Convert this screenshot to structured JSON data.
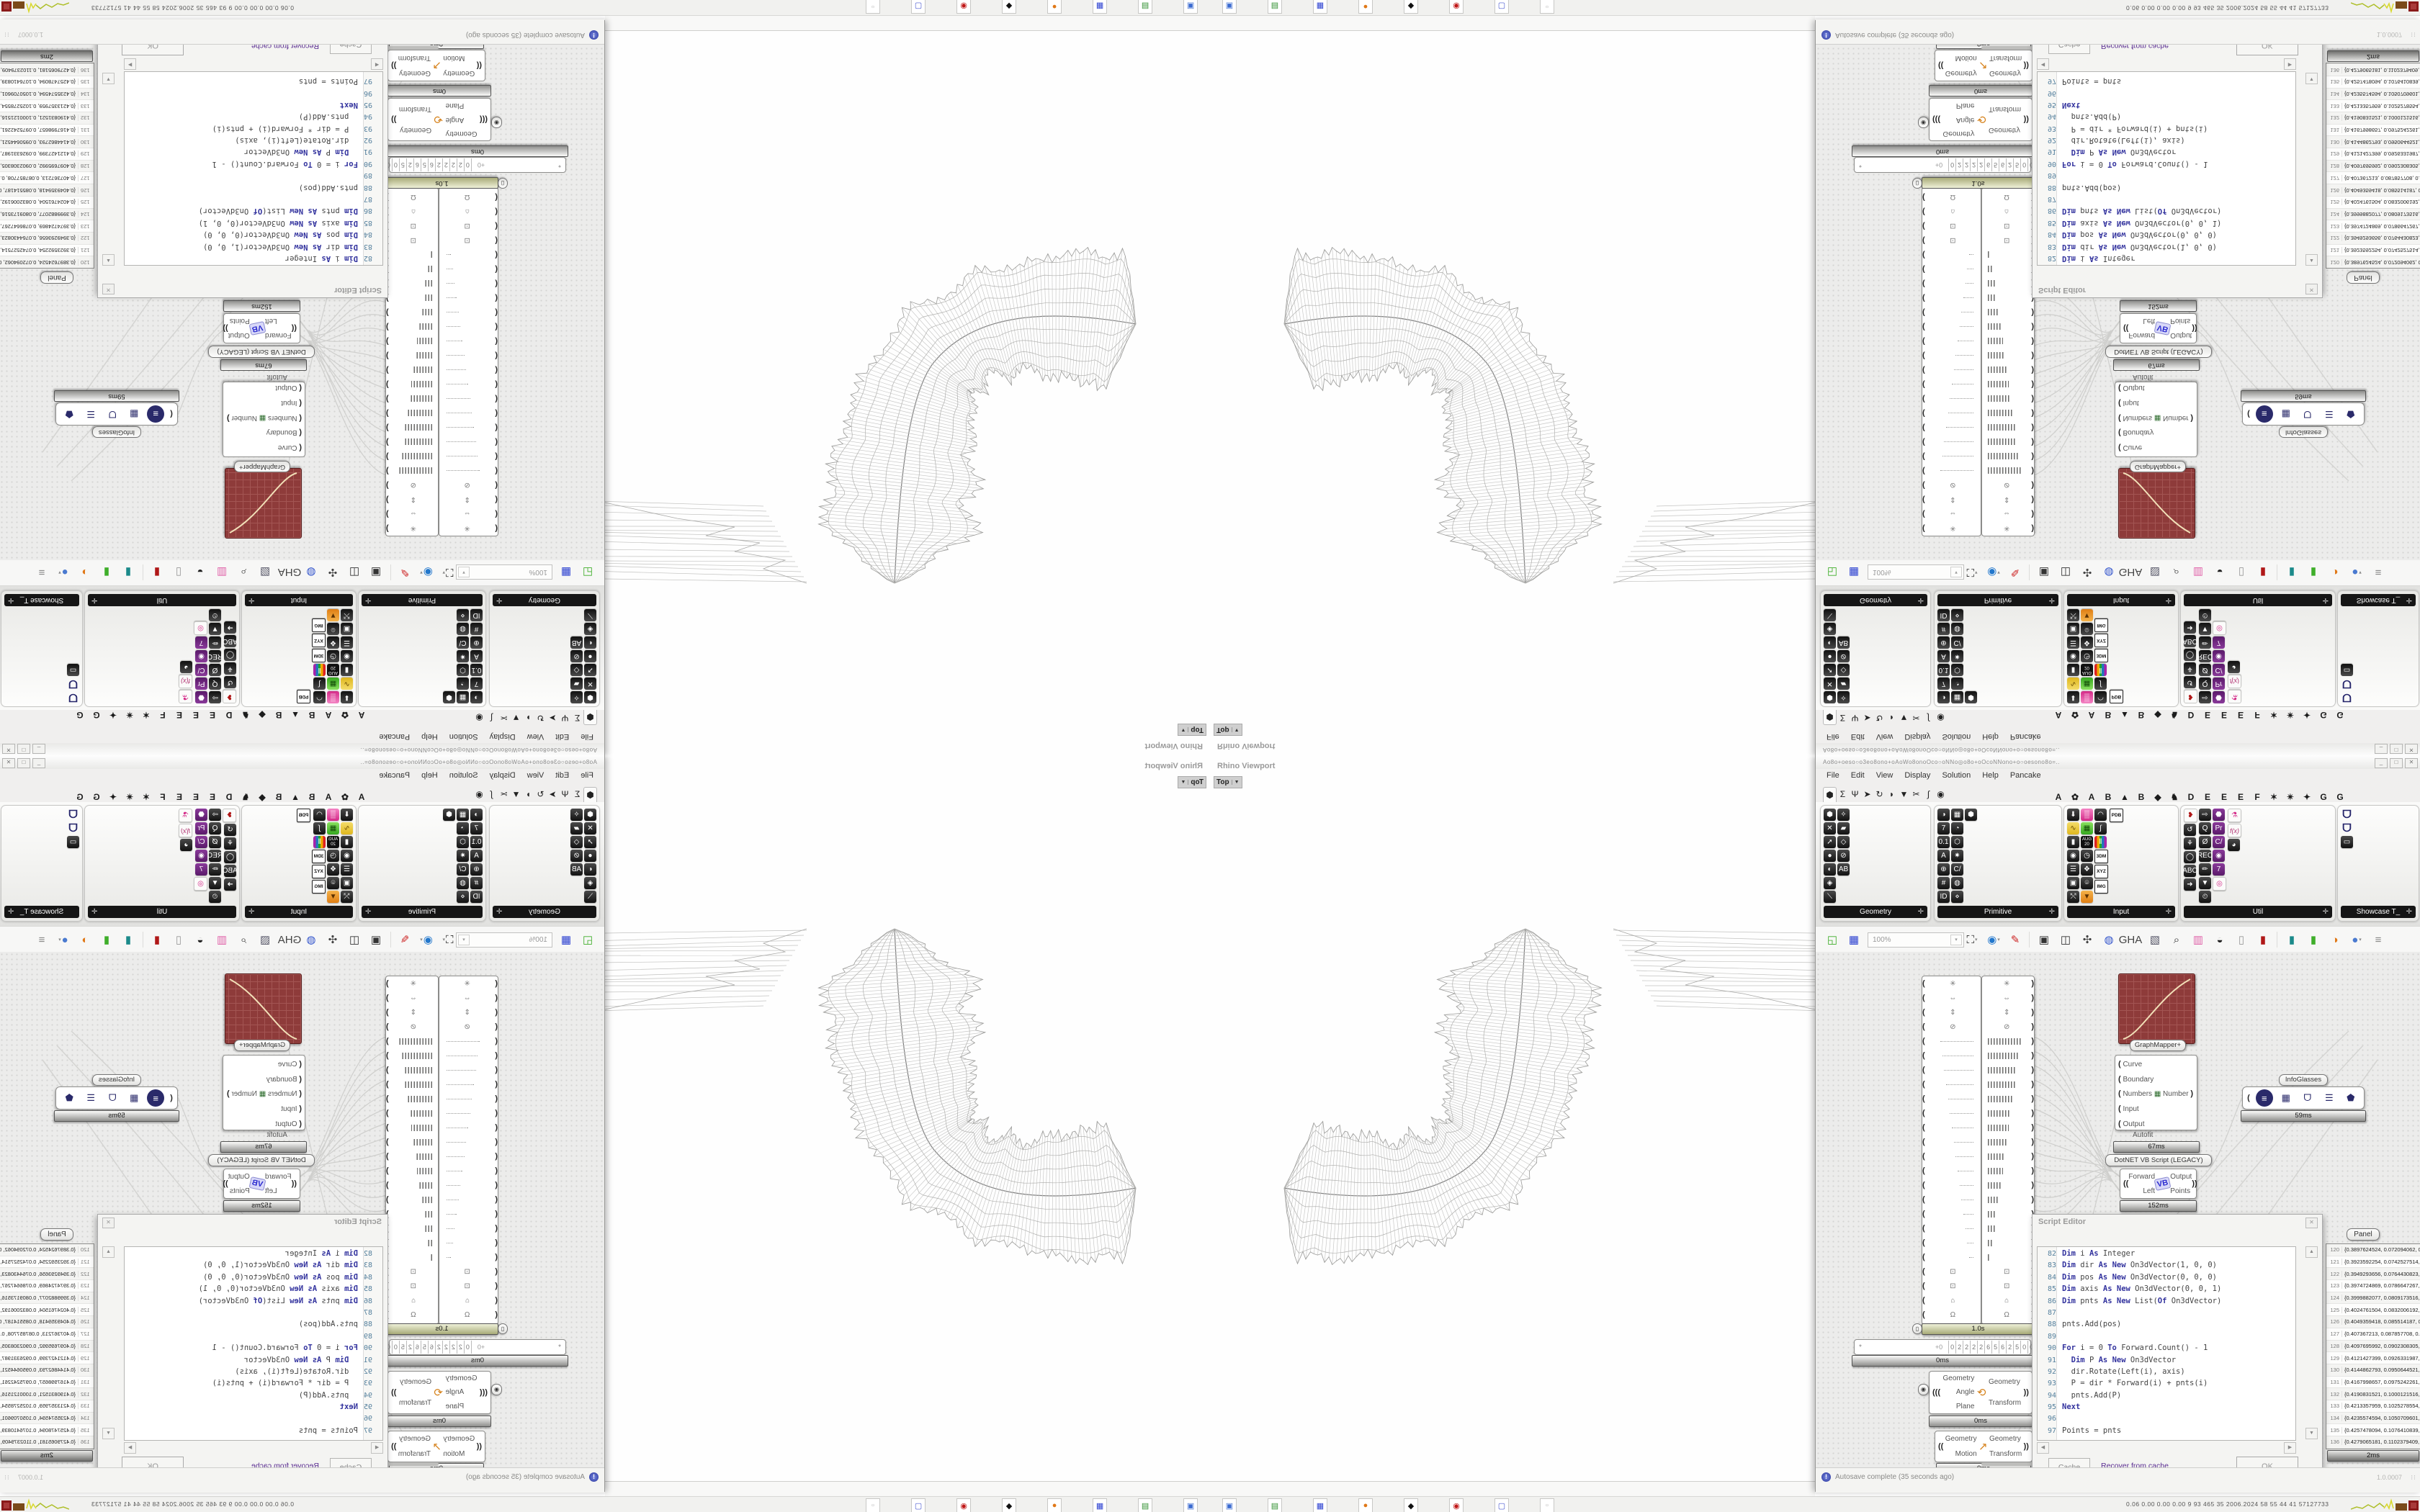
{
  "viewport": {
    "label": "Rhino Viewport",
    "view": "Top",
    "drawing": "fractal-feather-curve"
  },
  "window": {
    "title": "Ao8o+oeso○o3eo8ono+oAoWo8onoOco○oNNo◎o8o+oOcoNNono+o○oesono8o=..",
    "buttons": {
      "minimize": "_",
      "maximize": "□",
      "close": "✕"
    },
    "version": "1.0.0007",
    "autosave": "Autosave complete (35 seconds ago)",
    "menu": [
      "File",
      "Edit",
      "View",
      "Display",
      "Solution",
      "Help",
      "Pancake"
    ],
    "tab_icons": [
      "⬢",
      "Σ",
      "Ψ",
      "➤",
      "↻",
      "◗",
      "▼",
      "✂",
      "∫",
      "◉"
    ],
    "tab_letters": [
      "A",
      "✿",
      "A",
      "B",
      "▲",
      "B",
      "◆",
      "♞",
      "D",
      "E",
      "E",
      "E",
      "F",
      "✶",
      "✴",
      "✦",
      "G",
      "G"
    ],
    "zoom": "100%",
    "palettes": [
      {
        "name": "Geometry",
        "icons": [
          [
            "⬢",
            "dk"
          ],
          [
            "✕",
            "dk"
          ],
          [
            "➚",
            "dk"
          ],
          [
            "●",
            "dk"
          ],
          [
            "◐",
            "dk"
          ],
          [
            "◈",
            "dk"
          ],
          [
            "⟍",
            "dk"
          ],
          [
            "✧",
            "dk"
          ],
          [
            "▰",
            "dk"
          ],
          [
            "◇",
            "dk"
          ],
          [
            "⊘",
            "dk"
          ],
          [
            "AB",
            "dk"
          ]
        ]
      },
      {
        "name": "Primitive",
        "icons": [
          [
            "◑",
            "dk"
          ],
          [
            "7",
            "dk"
          ],
          [
            "0.1",
            "dk"
          ],
          [
            "A",
            "dk"
          ],
          [
            "⊕",
            "dk"
          ],
          [
            "#",
            "dk"
          ],
          [
            "ID",
            "dk"
          ],
          [
            "▦",
            "dk"
          ],
          [
            "◔",
            "dk"
          ],
          [
            "⬡",
            "dk"
          ],
          [
            "✷",
            "dk"
          ],
          [
            "C/",
            "dk"
          ],
          [
            "◍",
            "dk"
          ],
          [
            "⋄",
            "dk"
          ],
          [
            "⬢",
            "dk"
          ]
        ]
      },
      {
        "name": "Input",
        "icons": [
          [
            "⬇",
            "dk"
          ],
          [
            "∿",
            "yl"
          ],
          [
            "▮",
            "dk"
          ],
          [
            "◉",
            "dk"
          ],
          [
            "☰",
            "dk"
          ],
          [
            "▣",
            "dk"
          ],
          [
            "⤲",
            "dk"
          ],
          [
            "▒",
            "pk"
          ],
          [
            "▦",
            "gr"
          ],
          [
            "AUG 20",
            "cal"
          ],
          [
            "◷",
            "dk"
          ],
          [
            "❖",
            "dk"
          ],
          [
            "⌾",
            "dk"
          ],
          [
            "▼",
            "or"
          ],
          [
            "◠",
            "dk"
          ],
          [
            "∫",
            "dk"
          ],
          [
            "‖",
            "rb"
          ],
          [
            "3DM",
            "chip"
          ],
          [
            "XYZ",
            "chip"
          ],
          [
            "IMG",
            "chip"
          ],
          [
            "PDB",
            "chip"
          ]
        ]
      },
      {
        "name": "Util",
        "icons": [
          [
            "❥",
            "rd"
          ],
          [
            "↺",
            "dk"
          ],
          [
            "⚘",
            "dk"
          ],
          [
            "◯",
            "dk"
          ],
          [
            "ABC",
            "dk"
          ],
          [
            "➜",
            "dk"
          ],
          [
            "⇨",
            "dk"
          ],
          [
            "Q",
            "dk"
          ],
          [
            "Ø",
            "dk"
          ],
          [
            "REC",
            "dk"
          ],
          [
            "✏",
            "dk"
          ],
          [
            "▼",
            "dk"
          ],
          [
            "⏲",
            "dk"
          ],
          [
            "⬣",
            "pu"
          ],
          [
            "Pr",
            "pu"
          ],
          [
            "C/",
            "pu"
          ],
          [
            "◉",
            "pu"
          ],
          [
            "7",
            "pu"
          ],
          [
            "◎",
            "pk2"
          ],
          [
            "⚗",
            "pk2"
          ],
          [
            "f(x)",
            "fx"
          ],
          [
            "◕",
            "dk"
          ]
        ]
      },
      {
        "name": "Showcase T_",
        "icons": [
          [
            "ᗜ",
            "gog"
          ],
          [
            "ᗜ",
            "gog"
          ],
          [
            "▭",
            "dk"
          ]
        ]
      }
    ],
    "toolbar": [
      {
        "name": "open-file-icon",
        "g": "◱",
        "c": "#3fae2a"
      },
      {
        "name": "save-file-icon",
        "g": "▦",
        "c": "#2a3fd0"
      },
      {
        "name": "zoom-level",
        "g": "",
        "c": ""
      },
      {
        "name": "focus-extents-icon",
        "g": "⛶",
        "c": "#111",
        "caret": true
      },
      {
        "name": "preview-eye-icon",
        "g": "◉",
        "c": "#2277cc",
        "caret": true
      },
      {
        "name": "sketch-pen-icon",
        "g": "✎",
        "c": "#cc2222"
      },
      {
        "name": "sep",
        "g": "",
        "c": ""
      },
      {
        "name": "projector-icon",
        "g": "▣",
        "c": "#333"
      },
      {
        "name": "speaker-icon",
        "g": "◫",
        "c": "#333"
      },
      {
        "name": "gumball-icon",
        "g": "✣",
        "c": "#444"
      },
      {
        "name": "disc-icon",
        "g": "◍",
        "c": "#3355cc"
      },
      {
        "name": "gha-icon",
        "g": "GHA",
        "c": "#444"
      },
      {
        "name": "map-icon",
        "g": "▧",
        "c": "#556"
      },
      {
        "name": "search-icon",
        "g": "⌕",
        "c": "#333"
      },
      {
        "name": "crate-icon",
        "g": "▥",
        "c": "#e060a8"
      },
      {
        "name": "bowl-icon",
        "g": "◒",
        "c": "#222"
      },
      {
        "name": "wire-cylinder-icon",
        "g": "▯",
        "c": "#999"
      },
      {
        "name": "red-cylinder-icon",
        "g": "▮",
        "c": "#b01818"
      },
      {
        "name": "sep",
        "g": "",
        "c": ""
      },
      {
        "name": "teal-cylinder-icon",
        "g": "▮",
        "c": "#1b8a8a"
      },
      {
        "name": "green-cylinder-icon",
        "g": "▮",
        "c": "#3fae2a"
      },
      {
        "name": "half-sphere-icon",
        "g": "◑",
        "c": "#e07818"
      },
      {
        "name": "shaded-sphere-icon",
        "g": "●",
        "c": "#4a7ad0",
        "caret": true
      },
      {
        "name": "toolbar-overflow-icon",
        "g": "≡",
        "c": "#888"
      }
    ]
  },
  "canvas": {
    "bank": {
      "top_symbols": [
        "✳",
        "⇔",
        "⇕",
        "⊘"
      ],
      "bottom_symbols": [
        "⊡",
        "⊡",
        "⌂",
        "Ω"
      ],
      "mid_rows": 16,
      "time": "1.0s"
    },
    "counter": {
      "star": "*",
      "offset": "+0",
      "digits": [
        "0",
        "2",
        "2",
        "2",
        "2",
        "6",
        "5",
        "6",
        "2",
        "5",
        "0",
        "0"
      ],
      "time": "0ms"
    },
    "rotate": {
      "inputs": [
        "Geometry",
        "Angle",
        "Plane"
      ],
      "outputs": [
        "Geometry",
        "Transform"
      ],
      "icon": "⟲",
      "time": "0ms"
    },
    "move": {
      "inputs": [
        "Geometry",
        "Motion"
      ],
      "outputs": [
        "Geometry",
        "Transform"
      ],
      "icon": "↗",
      "time": "0ms"
    },
    "graph_mapper": {
      "label": "GraphMapper+"
    },
    "autofit": {
      "label": "Autofit",
      "left_pins": [
        "Curve",
        "Boundary",
        "Numbers",
        "Input",
        "Output"
      ],
      "right_pin": "Number",
      "time": "67ms"
    },
    "legacy_chip": "DotNET VB Script (LEGACY)",
    "vb": {
      "icon": "VB",
      "inputs": [
        "Forward",
        "Left"
      ],
      "outputs": [
        "Output",
        "Points"
      ],
      "time": "152ms"
    },
    "info_glasses": {
      "label": "InfoGlasses",
      "time": "59ms",
      "icons": [
        "≡",
        "▦",
        "ᗜ",
        "☰",
        "⬟"
      ]
    },
    "panel": {
      "label": "Panel",
      "time": "2ms",
      "rows": [
        [
          120,
          "{0.3897624524, 0.072094062, 0.0}"
        ],
        [
          121,
          "{0.3923592254, 0.0742527514, 0.0}"
        ],
        [
          122,
          "{0.3949293656, 0.0764430823, 0.0}"
        ],
        [
          123,
          "{0.3974724869, 0.0786647267, 0.0}"
        ],
        [
          124,
          "{0.3999882077, 0.0809173516, 0.0}"
        ],
        [
          125,
          "{0.4024761504, 0.0832006192, 0.0}"
        ],
        [
          126,
          "{0.4049359418, 0.085514187, 0.0}"
        ],
        [
          127,
          "{0.407367213, 0.087857708, 0.0}"
        ],
        [
          128,
          "{0.4097695992, 0.0902308305, 0.0}"
        ],
        [
          129,
          "{0.4121427399, 0.0926331987, 0.0}"
        ],
        [
          130,
          "{0.4144862793, 0.0950644521, 0.0}"
        ],
        [
          131,
          "{0.4167998657, 0.0975242261, 0.0}"
        ],
        [
          132,
          "{0.4190831521, 0.1000121516, 0.0}"
        ],
        [
          133,
          "{0.4213357959, 0.1025278554, 0.0}"
        ],
        [
          134,
          "{0.4235574594, 0.1050709601, 0.0}"
        ],
        [
          135,
          "{0.4257478094, 0.1076410839, 0.0}"
        ],
        [
          136,
          "{0.4279065181, 0.1102379409, 0.0}"
        ],
        [
          137,
          "{0.4300332629, 0.1128608404, 0.0}"
        ]
      ]
    }
  },
  "editor": {
    "title": "Script Editor",
    "close": "✕",
    "lines": [
      [
        82,
        "Dim i As Integer"
      ],
      [
        83,
        "Dim dir As New On3dVector(1, 0, 0)"
      ],
      [
        84,
        "Dim pos As New On3dVector(0, 0, 0)"
      ],
      [
        85,
        "Dim axis As New On3dVector(0, 0, 1)"
      ],
      [
        86,
        "Dim pnts As New List(Of On3dVector)"
      ],
      [
        87,
        ""
      ],
      [
        88,
        "pnts.Add(pos)"
      ],
      [
        89,
        ""
      ],
      [
        90,
        "For i = 0 To Forward.Count() - 1"
      ],
      [
        91,
        "  Dim P As New On3dVector"
      ],
      [
        92,
        "  dir.Rotate(Left(i), axis)"
      ],
      [
        93,
        "  P = dir * Forward(i) + pnts(i)"
      ],
      [
        94,
        "  pnts.Add(P)"
      ],
      [
        95,
        "Next"
      ],
      [
        96,
        ""
      ],
      [
        97,
        "Points = pnts"
      ]
    ],
    "cache_tab": "Cache",
    "recover_link": "Recover from cache",
    "ok": "OK"
  },
  "taskbar": {
    "stats": "0.06 0.00 0.00 0.00    9    93    465    35    2006.2024    58    55    44    41    57127733",
    "icons": [
      {
        "name": "monitor-app-icon",
        "g": "▣",
        "c": "#3a6ad0"
      },
      {
        "name": "drive-app-icon",
        "g": "▤",
        "c": "#2f8f2f"
      },
      {
        "name": "floppy-app-icon",
        "g": "▦",
        "c": "#2a3fd0"
      },
      {
        "name": "firefox-app-icon",
        "g": "●",
        "c": "#e07818"
      },
      {
        "name": "cat-app-icon",
        "g": "◆",
        "c": "#111"
      },
      {
        "name": "badge-app-icon",
        "g": "◉",
        "c": "#c01818"
      },
      {
        "name": "window-app-icon",
        "g": "▢",
        "c": "#4a5ad0"
      },
      {
        "name": "ghost-app-icon",
        "g": "▫",
        "c": "#bbb"
      }
    ]
  }
}
